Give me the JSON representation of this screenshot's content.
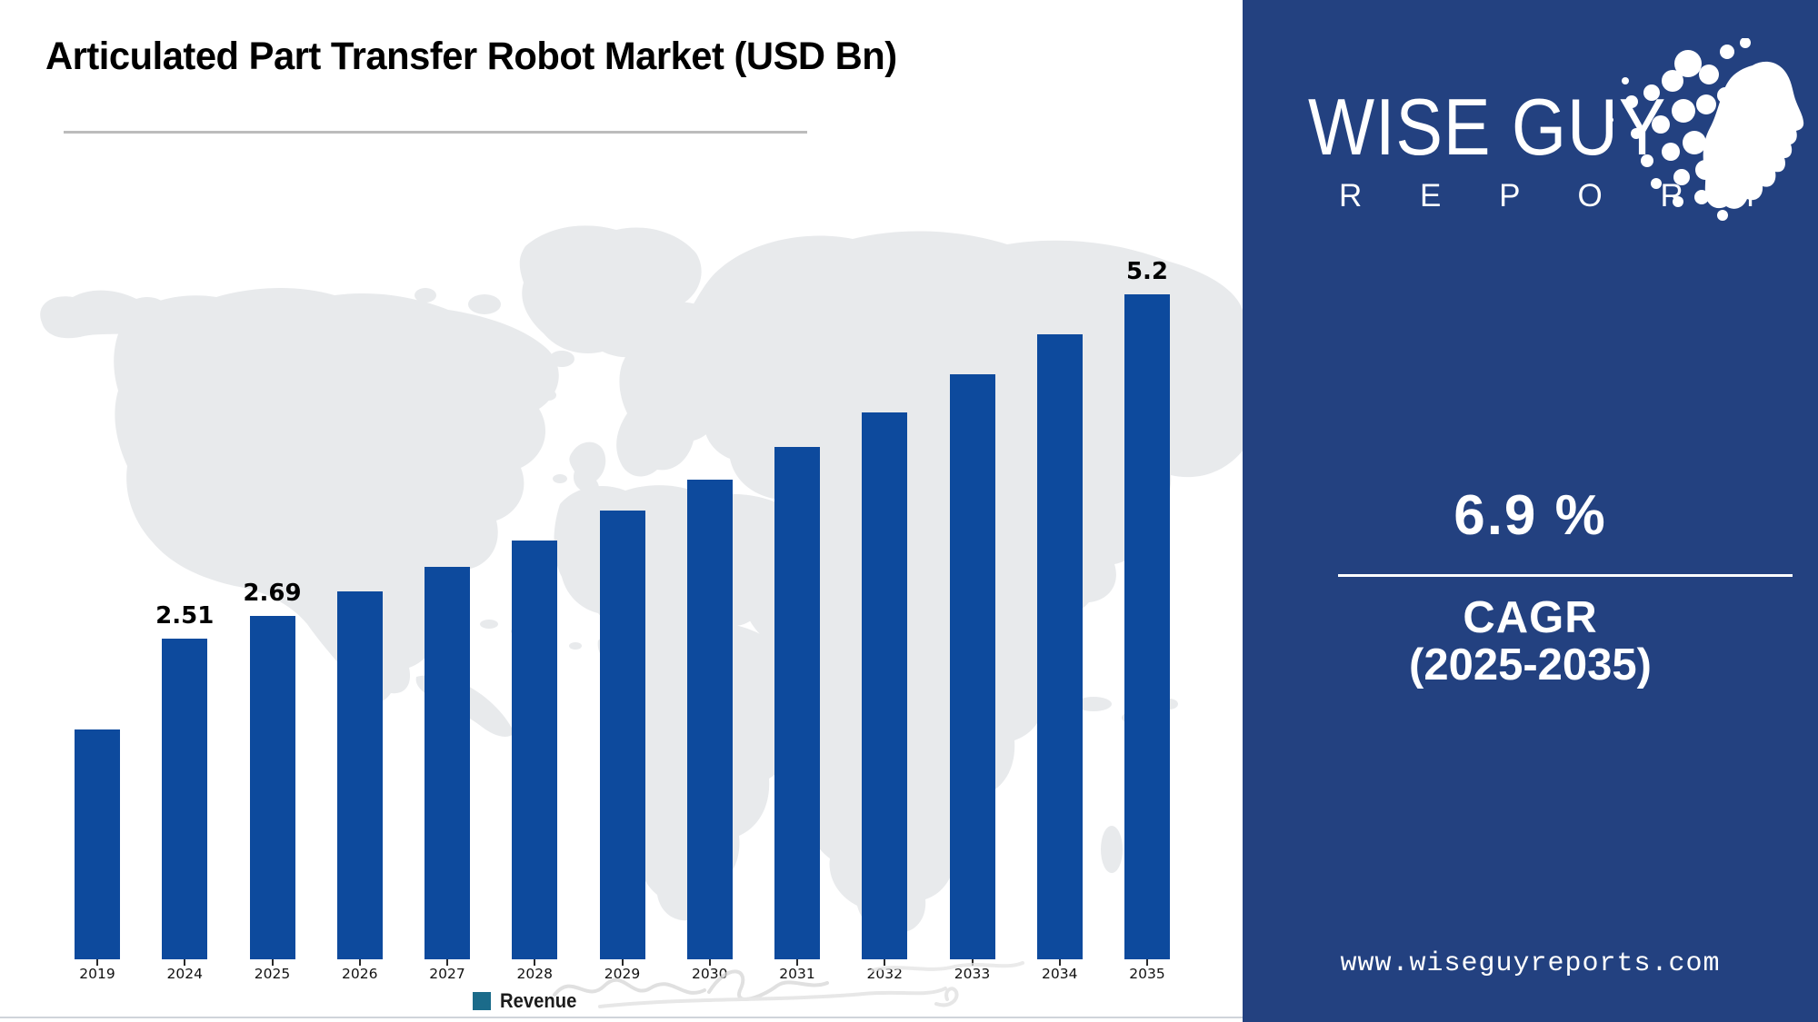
{
  "title": "Articulated Part Transfer Robot Market (USD Bn)",
  "chart_data": {
    "type": "bar",
    "title": "Articulated Part Transfer Robot Market (USD Bn)",
    "categories": [
      "2019",
      "2024",
      "2025",
      "2026",
      "2027",
      "2028",
      "2029",
      "2030",
      "2031",
      "2032",
      "2033",
      "2034",
      "2035"
    ],
    "values": [
      1.8,
      2.51,
      2.69,
      2.88,
      3.07,
      3.28,
      3.51,
      3.75,
      4.01,
      4.28,
      4.58,
      4.89,
      5.2
    ],
    "value_labels_shown": {
      "2024": "2.51",
      "2025": "2.69",
      "2035": "5.2"
    },
    "xlabel": "",
    "ylabel": "",
    "ylim": [
      0,
      5.6
    ],
    "grid": false,
    "bar_color": "#0d4a9d",
    "legend_position": "bottom",
    "legend": [
      {
        "label": "Revenue",
        "swatch_color": "#1b6b8a"
      }
    ]
  },
  "sidebar": {
    "background_color": "#234180",
    "logo": {
      "line1": "WISE GUY",
      "line2": "R E P O R T S",
      "head_icon": "dotted-head-profile"
    },
    "cagr_value": "6.9 %",
    "cagr_label_line1": "CAGR",
    "cagr_label_line2": "(2025-2035)",
    "website": "www.wiseguyreports.com"
  }
}
